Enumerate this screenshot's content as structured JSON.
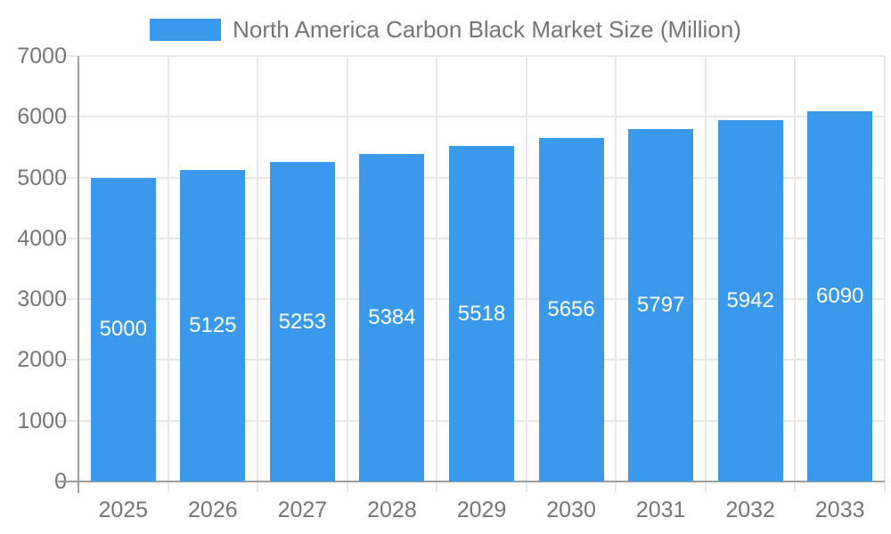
{
  "chart_data": {
    "type": "bar",
    "title": "North America Carbon Black Market Size (Million)",
    "categories": [
      "2025",
      "2026",
      "2027",
      "2028",
      "2029",
      "2030",
      "2031",
      "2032",
      "2033"
    ],
    "values": [
      5000,
      5125,
      5253,
      5384,
      5518,
      5656,
      5797,
      5942,
      6090
    ],
    "xlabel": "",
    "ylabel": "",
    "ylim": [
      0,
      7000
    ],
    "ytick_step": 1000,
    "grid": true,
    "legend_position": "top-center",
    "value_labels": "inside-center",
    "colors": {
      "bar_fill": "#3b99ec",
      "grid_line": "#e8e8e8",
      "axis_line": "#9e9e9e",
      "label_text": "#757575",
      "value_label_text": "#ffffff"
    }
  }
}
